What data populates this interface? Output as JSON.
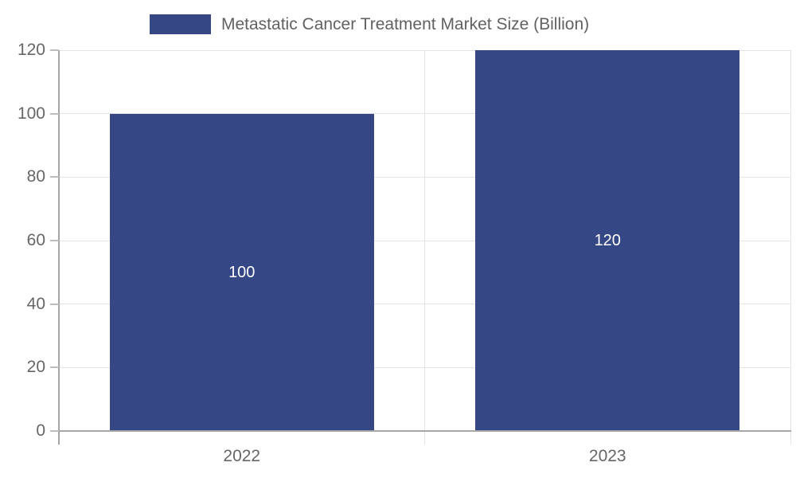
{
  "legend": {
    "label": "Metastatic Cancer Treatment Market Size (Billion)"
  },
  "colors": {
    "bar": "#364785",
    "grid": "#e4e4e4",
    "axis": "#a6a6a6",
    "tick_mark": "#bdbdbd",
    "tick_text": "#666666",
    "legend_text": "#616161",
    "value_label": "#ffffff",
    "background": "#ffffff"
  },
  "chart_data": {
    "type": "bar",
    "title": "Metastatic Cancer Treatment Market Size (Billion)",
    "categories": [
      "2022",
      "2023"
    ],
    "series": [
      {
        "name": "Metastatic Cancer Treatment Market Size (Billion)",
        "values": [
          100,
          120
        ]
      }
    ],
    "value_labels": [
      "100",
      "120"
    ],
    "xlabel": "",
    "ylabel": "",
    "ylim": [
      0,
      120
    ],
    "yticks": [
      0,
      20,
      40,
      60,
      80,
      100,
      120
    ],
    "grid": true,
    "legend_position": "top"
  }
}
